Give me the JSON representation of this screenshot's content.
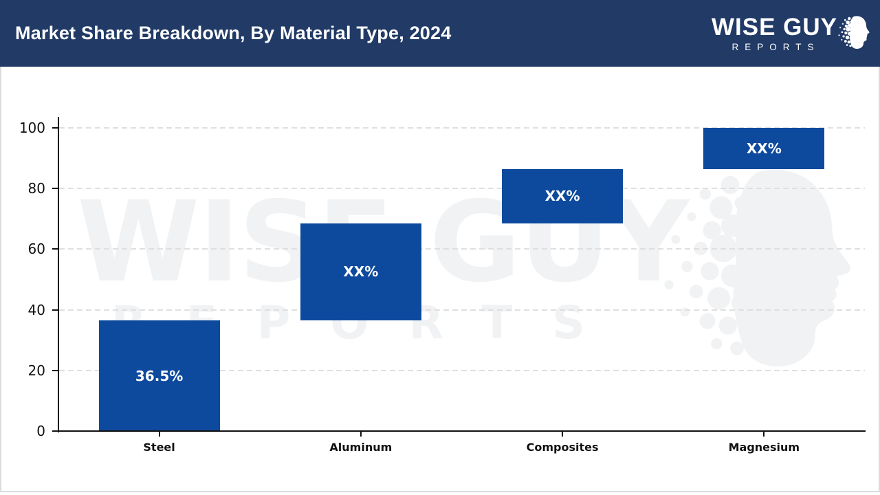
{
  "header": {
    "title": "Market Share Breakdown, By Material Type, 2024",
    "logo": {
      "line1": "WISE GUY",
      "line2": "REPORTS"
    }
  },
  "watermark": {
    "line1": "WISE GUY",
    "line2": "REPORTS"
  },
  "colors": {
    "header_bg": "#213a66",
    "bar": "#0d4a9e",
    "bar_label": "#ffffff",
    "axis": "#111111",
    "tick_text": "#111111",
    "grid": "#dfdfdf",
    "watermark": "#f1f2f4",
    "title_text": "#ffffff"
  },
  "chart_data": {
    "type": "bar",
    "subtype": "waterfall",
    "title": "Market Share Breakdown, By Material Type, 2024",
    "categories": [
      "Steel",
      "Aluminum",
      "Composites",
      "Magnesium"
    ],
    "segments": [
      {
        "category": "Steel",
        "label": "36.5%",
        "start": 0,
        "end": 36.5
      },
      {
        "category": "Aluminum",
        "label": "XX%",
        "start": 36.5,
        "end": 68.5
      },
      {
        "category": "Composites",
        "label": "XX%",
        "start": 68.5,
        "end": 86.5
      },
      {
        "category": "Magnesium",
        "label": "XX%",
        "start": 86.5,
        "end": 100
      }
    ],
    "yticks": [
      0,
      20,
      40,
      60,
      80,
      100
    ],
    "ylim": [
      0,
      103.6
    ],
    "xlabel": "",
    "ylabel": "",
    "grid": "horizontal-dashed",
    "legend": "none"
  }
}
